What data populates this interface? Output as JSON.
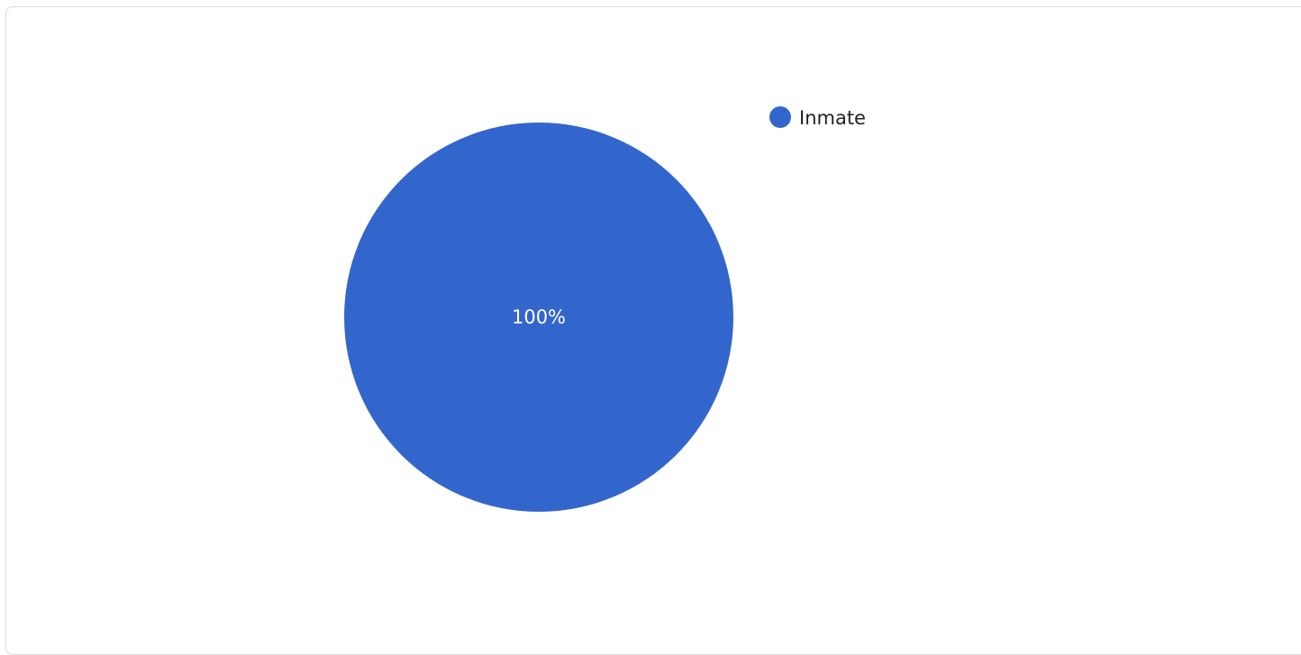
{
  "chart_data": {
    "type": "pie",
    "slices": [
      {
        "label": "Inmate",
        "value": 100,
        "display": "100%",
        "color": "#3366cc"
      }
    ],
    "title": "",
    "legend_position": "right"
  }
}
